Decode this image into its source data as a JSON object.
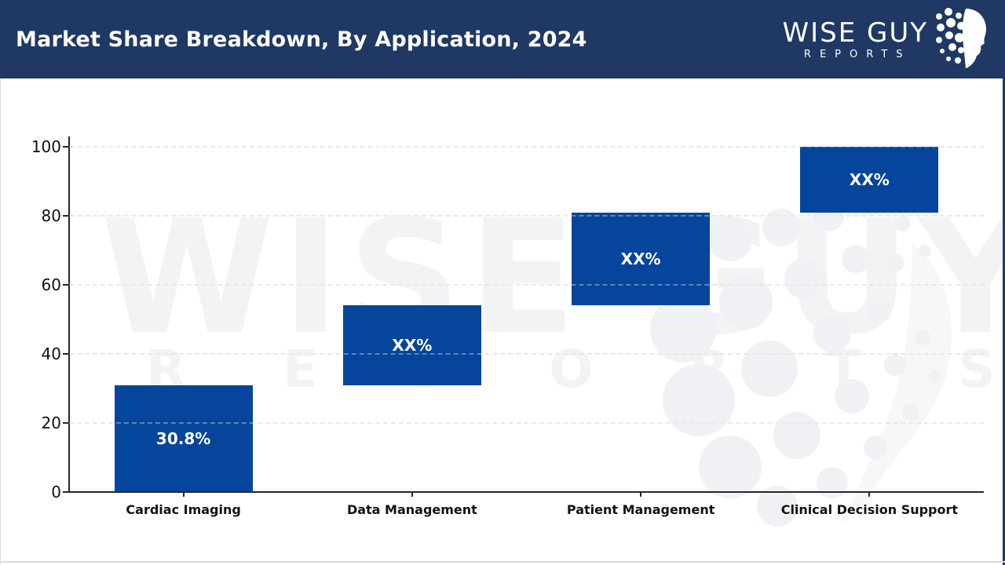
{
  "header": {
    "title": "Market Share Breakdown, By Application, 2024",
    "brand": {
      "line1": "WISE GUY",
      "line2": "REPORTS"
    }
  },
  "watermark": {
    "line1": "WISE GUY",
    "line2": "R E P O R T S"
  },
  "colors": {
    "header_bg": "#1f3864",
    "bar_blue": "#05459c",
    "gridline": "#dcdcdc",
    "watermark_gray": "#f2f3f5",
    "axis": "#262626"
  },
  "chart_data": {
    "type": "bar",
    "subtype": "floating-waterfall",
    "title": "Market Share Breakdown, By Application, 2024",
    "categories": [
      "Cardiac Imaging",
      "Data Management",
      "Patient Management",
      "Clinical Decision Support"
    ],
    "segments": [
      {
        "category": "Cardiac Imaging",
        "start": 0,
        "end": 30.8,
        "label": "30.8%"
      },
      {
        "category": "Data Management",
        "start": 30.8,
        "end": 54.1,
        "label": "XX%"
      },
      {
        "category": "Patient Management",
        "start": 54.1,
        "end": 81.0,
        "label": "XX%"
      },
      {
        "category": "Clinical Decision Support",
        "start": 81.0,
        "end": 100.0,
        "label": "XX%"
      }
    ],
    "xlabel": "",
    "ylabel": "",
    "yticks": [
      0,
      20,
      40,
      60,
      80,
      100
    ],
    "ylim": [
      0,
      103
    ],
    "grid": "horizontal-dashed",
    "legend": "none",
    "bar_color": "#05459c"
  }
}
